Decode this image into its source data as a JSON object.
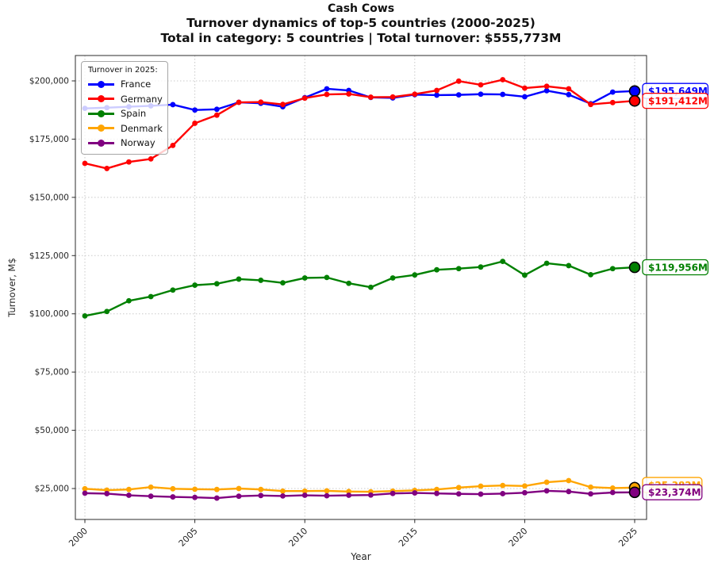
{
  "header": {
    "title": "Cash Cows",
    "subtitle": "Turnover dynamics of top-5 countries (2000-2025)",
    "summary": "Total in category: 5 countries | Total turnover: $555,773M"
  },
  "legend": {
    "title": "Turnover in 2025:",
    "items": [
      {
        "label": "France",
        "color": "#0000ff"
      },
      {
        "label": "Germany",
        "color": "#ff0000"
      },
      {
        "label": "Spain",
        "color": "#008000"
      },
      {
        "label": "Denmark",
        "color": "#ffa500"
      },
      {
        "label": "Norway",
        "color": "#800080"
      }
    ]
  },
  "chart_data": {
    "type": "line",
    "title": "Cash Cows",
    "subtitle": "Turnover dynamics of top-5 countries (2000-2025)",
    "note": "Total in category: 5 countries | Total turnover: $555,773M",
    "xlabel": "Year",
    "ylabel": "Turnover, M$",
    "x": [
      2000,
      2001,
      2002,
      2003,
      2004,
      2005,
      2006,
      2007,
      2008,
      2009,
      2010,
      2011,
      2012,
      2013,
      2014,
      2015,
      2016,
      2017,
      2018,
      2019,
      2020,
      2021,
      2022,
      2023,
      2024,
      2025
    ],
    "xticks": [
      {
        "value": 2000,
        "label": "2000"
      },
      {
        "value": 2005,
        "label": "2005"
      },
      {
        "value": 2010,
        "label": "2010"
      },
      {
        "value": 2015,
        "label": "2015"
      },
      {
        "value": 2020,
        "label": "2020"
      },
      {
        "value": 2025,
        "label": "2025"
      }
    ],
    "yticks": [
      {
        "value": 25000,
        "label": "$25,000"
      },
      {
        "value": 50000,
        "label": "$50,000"
      },
      {
        "value": 75000,
        "label": "$75,000"
      },
      {
        "value": 100000,
        "label": "$100,000"
      },
      {
        "value": 125000,
        "label": "$125,000"
      },
      {
        "value": 150000,
        "label": "$150,000"
      },
      {
        "value": 175000,
        "label": "$175,000"
      },
      {
        "value": 200000,
        "label": "$200,000"
      }
    ],
    "ylim": [
      11700,
      211000
    ],
    "grid": true,
    "grid_style": "dotted",
    "legend_position": "upper left",
    "legend_title": "Turnover in 2025:",
    "series": [
      {
        "name": "France",
        "color": "#0000ff",
        "end_label": "$195,649M",
        "end_value": 195649,
        "occluded": false,
        "values": [
          188200,
          188500,
          188900,
          189300,
          189800,
          187500,
          187800,
          190800,
          190400,
          188900,
          192800,
          196600,
          195900,
          192900,
          192700,
          194100,
          193900,
          194000,
          194300,
          194200,
          193200,
          195800,
          194100,
          190200,
          195200,
          195649
        ]
      },
      {
        "name": "Germany",
        "color": "#ff0000",
        "end_label": "$191,412M",
        "end_value": 191412,
        "occluded": false,
        "values": [
          164600,
          162400,
          165200,
          166500,
          172300,
          181800,
          185300,
          190800,
          190900,
          189900,
          192600,
          194200,
          194400,
          193000,
          193100,
          194300,
          195900,
          199900,
          198300,
          200500,
          196900,
          197700,
          196600,
          189900,
          190700,
          191412
        ]
      },
      {
        "name": "Spain",
        "color": "#008000",
        "end_label": "$119,956M",
        "end_value": 119956,
        "occluded": false,
        "values": [
          99100,
          101000,
          105600,
          107400,
          110200,
          112300,
          112900,
          114900,
          114400,
          113300,
          115400,
          115600,
          113100,
          111400,
          115400,
          116700,
          118900,
          119400,
          120100,
          122500,
          116600,
          121700,
          120700,
          116800,
          119400,
          119956
        ]
      },
      {
        "name": "Denmark",
        "color": "#ffa500",
        "end_label": "$25,382M",
        "end_value": 25382,
        "occluded": true,
        "values": [
          24900,
          24300,
          24600,
          25600,
          24900,
          24700,
          24600,
          25000,
          24600,
          23900,
          23900,
          24000,
          23700,
          23600,
          23900,
          24200,
          24600,
          25400,
          26000,
          26300,
          26100,
          27700,
          28400,
          25600,
          25200,
          25382
        ]
      },
      {
        "name": "Norway",
        "color": "#800080",
        "end_label": "$23,374M",
        "end_value": 23374,
        "occluded": false,
        "values": [
          23000,
          22800,
          22100,
          21700,
          21400,
          21200,
          20900,
          21700,
          22000,
          21800,
          22100,
          21900,
          22100,
          22200,
          22900,
          23100,
          22900,
          22700,
          22600,
          22800,
          23200,
          24000,
          23700,
          22700,
          23300,
          23374
        ]
      }
    ]
  }
}
